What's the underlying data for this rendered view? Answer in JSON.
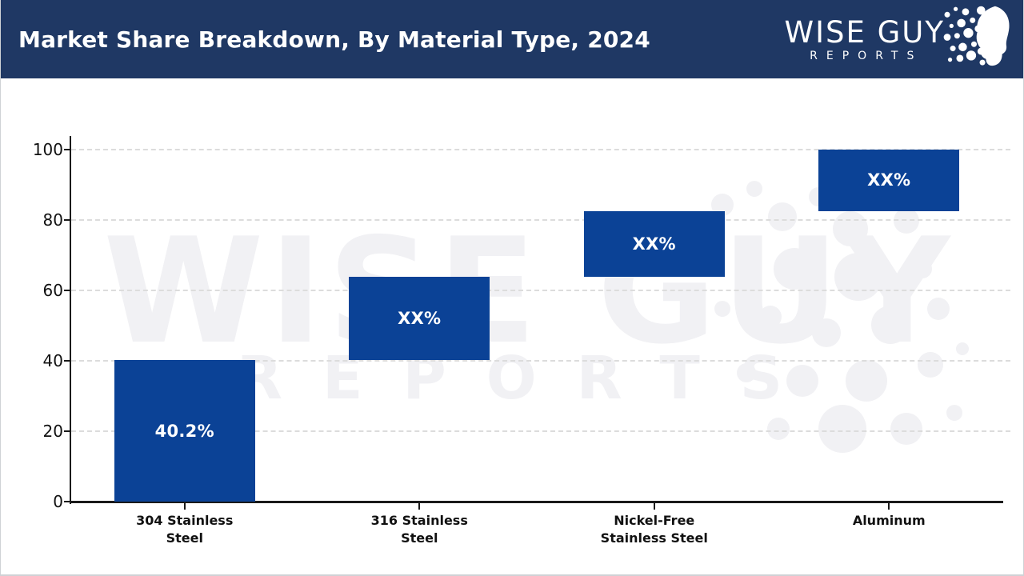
{
  "header": {
    "title": "Market Share Breakdown, By Material Type, 2024",
    "logo": {
      "name": "WISE GUY",
      "subtitle": "REPORTS"
    }
  },
  "watermark": {
    "line1": "WISE GUY",
    "line2": "REPORTS"
  },
  "colors": {
    "header_bg": "#1f3864",
    "bar": "#0b4296",
    "bar_label": "#ffffff",
    "gridline": "#dcdcdc",
    "axis": "#1a1a1a",
    "watermark": "#f1f1f4"
  },
  "chart_data": {
    "type": "bar",
    "subtype": "waterfall",
    "title": "Market Share Breakdown, By Material Type, 2024",
    "categories": [
      "304 Stainless\nSteel",
      "316 Stainless\nSteel",
      "Nickel-Free\nStainless Steel",
      "Aluminum"
    ],
    "series": [
      {
        "name": "Market Share",
        "segments": [
          {
            "category": "304 Stainless Steel",
            "start": 0,
            "end": 40.2,
            "label": "40.2%"
          },
          {
            "category": "316 Stainless Steel",
            "start": 40.2,
            "end": 63.8,
            "label": "XX%"
          },
          {
            "category": "Nickel-Free Stainless Steel",
            "start": 63.8,
            "end": 82.6,
            "label": "XX%"
          },
          {
            "category": "Aluminum",
            "start": 82.6,
            "end": 100,
            "label": "XX%"
          }
        ]
      }
    ],
    "xlabel": "",
    "ylabel": "",
    "yticks": [
      0,
      20,
      40,
      60,
      80,
      100
    ],
    "ylim": [
      0,
      100
    ],
    "grid": "horizontal-dashed",
    "legend": "none",
    "bar_color": "#0b4296",
    "label_color": "#ffffff"
  }
}
